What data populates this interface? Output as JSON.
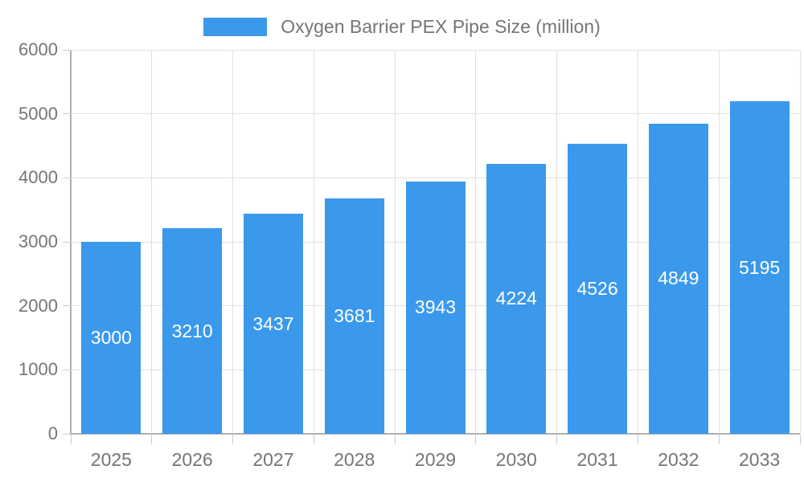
{
  "legend": {
    "label": "Oxygen Barrier PEX Pipe Size (million)",
    "swatch_color": "#3b99ec"
  },
  "chart_data": {
    "type": "bar",
    "title": "Oxygen Barrier PEX Pipe Size (million)",
    "series_name": "Oxygen Barrier PEX Pipe Size (million)",
    "categories": [
      "2025",
      "2026",
      "2027",
      "2028",
      "2029",
      "2030",
      "2031",
      "2032",
      "2033"
    ],
    "values": [
      3000,
      3210,
      3437,
      3681,
      3943,
      4224,
      4526,
      4849,
      5195
    ],
    "xlabel": "",
    "ylabel": "",
    "ylim": [
      0,
      6000
    ],
    "yticks": [
      0,
      1000,
      2000,
      3000,
      4000,
      5000,
      6000
    ],
    "grid": true,
    "legend_position": "top-center",
    "bar_color": "#3b99ec",
    "bar_value_label_color": "#ffffff",
    "gridline_color": "#e0e0e0",
    "axis_color": "#b0b0b0",
    "tick_color": "#cccccc",
    "tick_text_color": "#757575"
  }
}
